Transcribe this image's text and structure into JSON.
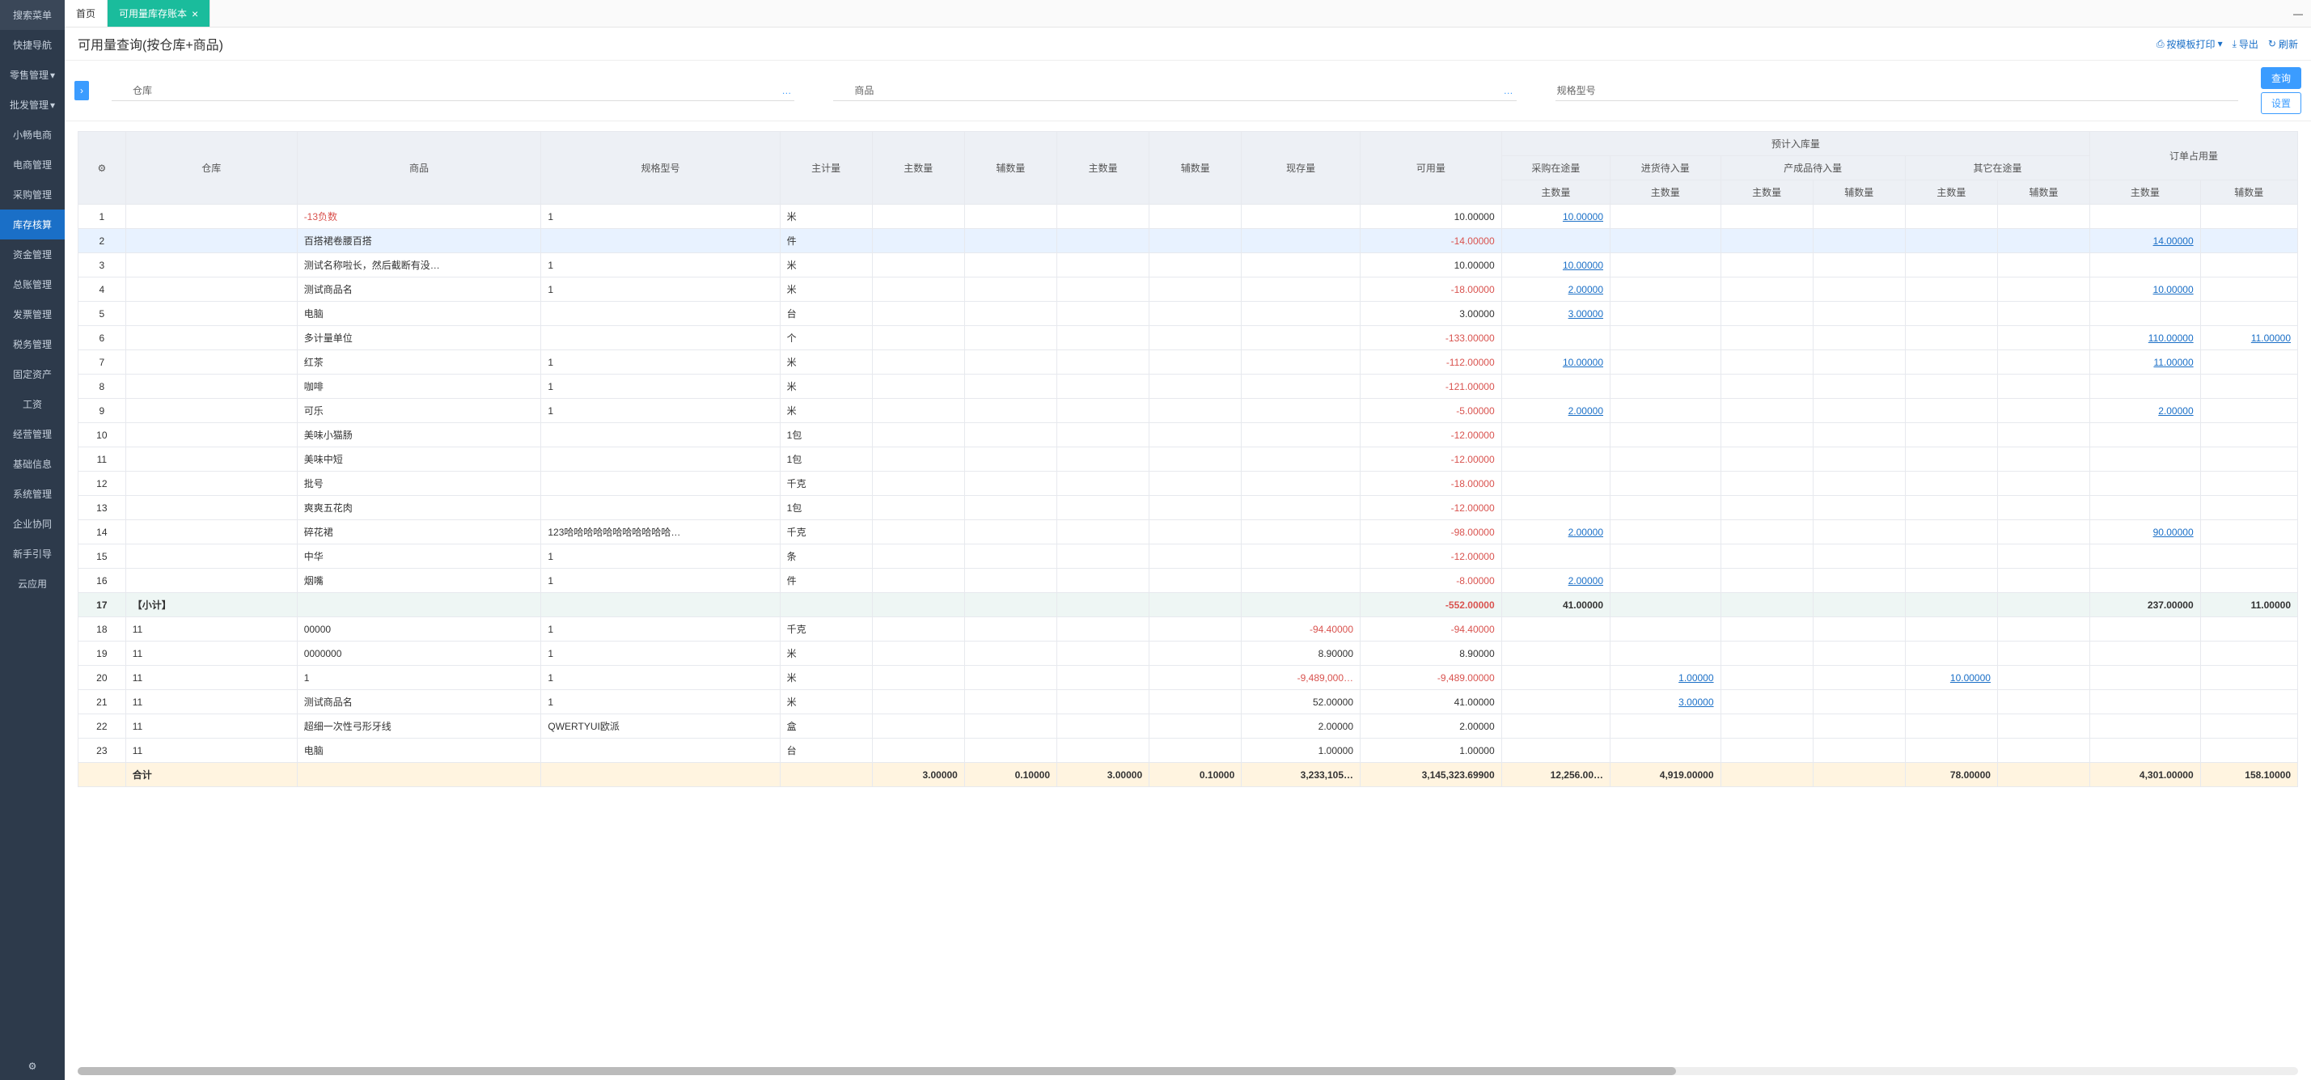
{
  "sidebar": {
    "items": [
      {
        "label": "搜索菜单",
        "key": "search"
      },
      {
        "label": "快捷导航",
        "key": "quicknav"
      },
      {
        "label": "零售管理",
        "key": "retail",
        "chevron": true
      },
      {
        "label": "批发管理",
        "key": "wholesale",
        "chevron": true
      },
      {
        "label": "小畅电商",
        "key": "ecom1"
      },
      {
        "label": "电商管理",
        "key": "ecom2"
      },
      {
        "label": "采购管理",
        "key": "purchase"
      },
      {
        "label": "库存核算",
        "key": "inventory",
        "active": true
      },
      {
        "label": "资金管理",
        "key": "funds"
      },
      {
        "label": "总账管理",
        "key": "gl"
      },
      {
        "label": "发票管理",
        "key": "invoice"
      },
      {
        "label": "税务管理",
        "key": "tax"
      },
      {
        "label": "固定资产",
        "key": "fixedasset"
      },
      {
        "label": "工资",
        "key": "salary"
      },
      {
        "label": "经营管理",
        "key": "ops"
      },
      {
        "label": "基础信息",
        "key": "basics"
      },
      {
        "label": "系统管理",
        "key": "system"
      },
      {
        "label": "企业协同",
        "key": "collab"
      },
      {
        "label": "新手引导",
        "key": "guide"
      },
      {
        "label": "云应用",
        "key": "cloud"
      }
    ]
  },
  "tabs": {
    "home": "首页",
    "active": "可用量库存账本",
    "minimize": "—"
  },
  "page": {
    "title": "可用量查询(按仓库+商品)",
    "actions": {
      "print": "按模板打印",
      "export": "导出",
      "refresh": "刷新"
    }
  },
  "filters": {
    "warehouse": {
      "label": "仓库",
      "value": ""
    },
    "product": {
      "label": "商品",
      "value": ""
    },
    "spec": {
      "label": "规格型号",
      "value": ""
    },
    "query": "查询",
    "settings": "设置",
    "more": "…"
  },
  "table": {
    "headers": {
      "gear": "⚙",
      "warehouse": "仓库",
      "product": "商品",
      "spec": "规格型号",
      "unit": "主计量",
      "mainQty": "主数量",
      "auxQty": "辅数量",
      "mainQty2": "主数量",
      "auxQty2": "辅数量",
      "stock": "现存量",
      "available": "可用量",
      "expected": "预计入库量",
      "purchaseTransit": "采购在途量",
      "goodsPending": "进货待入量",
      "finishedPending": "产成品待入量",
      "otherTransit": "其它在途量",
      "orderOccupy": "订单占用量",
      "sub_main": "主数量",
      "sub_aux": "辅数量"
    },
    "rows": [
      {
        "n": "1",
        "wh": "",
        "prod": "-13负数",
        "prodNeg": true,
        "spec": "1",
        "unit": "米",
        "avail": "10.00000",
        "purMain": "10.00000"
      },
      {
        "n": "2",
        "wh": "",
        "prod": "百搭裙卷腰百搭",
        "spec": "",
        "unit": "件",
        "avail": "-14.00000",
        "availNeg": true,
        "ordMain": "14.00000",
        "highlight": true
      },
      {
        "n": "3",
        "wh": "",
        "prod": "测试名称啦长，然后截断有没…",
        "spec": "1",
        "unit": "米",
        "avail": "10.00000",
        "purMain": "10.00000"
      },
      {
        "n": "4",
        "wh": "",
        "prod": "测试商品名",
        "spec": "1",
        "unit": "米",
        "avail": "-18.00000",
        "availNeg": true,
        "purMain": "2.00000",
        "ordMain": "10.00000"
      },
      {
        "n": "5",
        "wh": "",
        "prod": "电脑",
        "spec": "",
        "unit": "台",
        "avail": "3.00000",
        "purMain": "3.00000"
      },
      {
        "n": "6",
        "wh": "",
        "prod": "多计量单位",
        "spec": "",
        "unit": "个",
        "avail": "-133.00000",
        "availNeg": true,
        "ordMain": "110.00000",
        "ordAux": "11.00000"
      },
      {
        "n": "7",
        "wh": "",
        "prod": "红茶",
        "spec": "1",
        "unit": "米",
        "avail": "-112.00000",
        "availNeg": true,
        "purMain": "10.00000",
        "ordMain": "11.00000"
      },
      {
        "n": "8",
        "wh": "",
        "prod": "咖啡",
        "spec": "1",
        "unit": "米",
        "avail": "-121.00000",
        "availNeg": true
      },
      {
        "n": "9",
        "wh": "",
        "prod": "可乐",
        "spec": "1",
        "unit": "米",
        "avail": "-5.00000",
        "availNeg": true,
        "purMain": "2.00000",
        "ordMain": "2.00000"
      },
      {
        "n": "10",
        "wh": "",
        "prod": "美味小猫肠",
        "spec": "",
        "unit": "1包",
        "avail": "-12.00000",
        "availNeg": true
      },
      {
        "n": "11",
        "wh": "",
        "prod": "美味中短",
        "spec": "",
        "unit": "1包",
        "avail": "-12.00000",
        "availNeg": true
      },
      {
        "n": "12",
        "wh": "",
        "prod": "批号",
        "spec": "",
        "unit": "千克",
        "avail": "-18.00000",
        "availNeg": true
      },
      {
        "n": "13",
        "wh": "",
        "prod": "爽爽五花肉",
        "spec": "",
        "unit": "1包",
        "avail": "-12.00000",
        "availNeg": true
      },
      {
        "n": "14",
        "wh": "",
        "prod": "碎花裙",
        "spec": "123哈哈哈哈哈哈哈哈哈哈哈…",
        "unit": "千克",
        "avail": "-98.00000",
        "availNeg": true,
        "purMain": "2.00000",
        "ordMain": "90.00000"
      },
      {
        "n": "15",
        "wh": "",
        "prod": "中华",
        "spec": "1",
        "unit": "条",
        "avail": "-12.00000",
        "availNeg": true
      },
      {
        "n": "16",
        "wh": "",
        "prod": "烟嘴",
        "spec": "1",
        "unit": "件",
        "avail": "-8.00000",
        "availNeg": true,
        "purMain": "2.00000"
      },
      {
        "n": "17",
        "wh": "【小计】",
        "prod": "",
        "spec": "",
        "unit": "",
        "avail": "-552.00000",
        "availNeg": true,
        "purMain": "41.00000",
        "ordMain": "237.00000",
        "ordAux": "11.00000",
        "subtotal": true
      },
      {
        "n": "18",
        "wh": "11",
        "prod": "00000",
        "spec": "1",
        "unit": "千克",
        "stock": "-94.40000",
        "stockNeg": true,
        "avail": "-94.40000",
        "availNeg": true
      },
      {
        "n": "19",
        "wh": "11",
        "prod": "0000000",
        "spec": "1",
        "unit": "米",
        "stock": "8.90000",
        "avail": "8.90000"
      },
      {
        "n": "20",
        "wh": "11",
        "prod": "1",
        "spec": "1",
        "unit": "米",
        "stock": "-9,489,000…",
        "stockNeg": true,
        "avail": "-9,489.00000",
        "availNeg": true,
        "goodsMain": "1.00000",
        "otherMain": "10.00000"
      },
      {
        "n": "21",
        "wh": "11",
        "prod": "测试商品名",
        "spec": "1",
        "unit": "米",
        "stock": "52.00000",
        "avail": "41.00000",
        "goodsMain": "3.00000"
      },
      {
        "n": "22",
        "wh": "11",
        "prod": "超细一次性弓形牙线",
        "spec": "QWERTYUI欧派",
        "unit": "盒",
        "stock": "2.00000",
        "avail": "2.00000"
      },
      {
        "n": "23",
        "wh": "11",
        "prod": "电脑",
        "spec": "",
        "unit": "台",
        "stock": "1.00000",
        "avail": "1.00000"
      }
    ],
    "footer": {
      "label": "合计",
      "mainQty": "3.00000",
      "auxQty": "0.10000",
      "mainQty2": "3.00000",
      "auxQty2": "0.10000",
      "stock": "3,233,105…",
      "available": "3,145,323.69900",
      "purMain": "12,256.00…",
      "goodsMain": "4,919.00000",
      "otherMain": "78.00000",
      "ordMain": "4,301.00000",
      "ordAux": "158.10000"
    }
  },
  "glyphs": {
    "gear": "⚙",
    "chevronDown": "▾",
    "chevronRight": "›",
    "refresh": "↻",
    "export": "⤓",
    "print": "⎙"
  }
}
